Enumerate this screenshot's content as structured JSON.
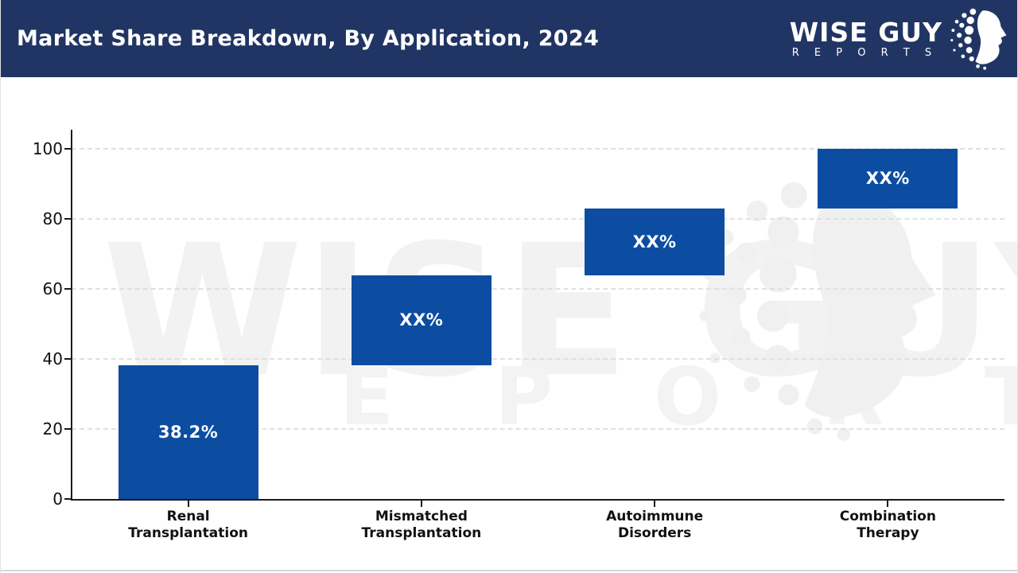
{
  "header": {
    "title": "Market Share Breakdown, By Application, 2024",
    "bg_color": "#213564",
    "logo": {
      "primary": "WISE GUY",
      "secondary": "R E P O R T S"
    }
  },
  "watermark": {
    "primary": "WISE GUY",
    "secondary": "R E P O R T S"
  },
  "chart_data": {
    "type": "bar",
    "variant": "waterfall",
    "title": "Market Share Breakdown, By Application, 2024",
    "categories": [
      [
        "Renal",
        "Transplantation"
      ],
      [
        "Mismatched",
        "Transplantation"
      ],
      [
        "Autoimmune",
        "Disorders"
      ],
      [
        "Combination",
        "Therapy"
      ]
    ],
    "segments": [
      {
        "category": "Renal Transplantation",
        "start": 0,
        "end": 38.2,
        "label": "38.2%"
      },
      {
        "category": "Mismatched Transplantation",
        "start": 38.2,
        "end": 63.9,
        "label": "XX%"
      },
      {
        "category": "Autoimmune Disorders",
        "start": 63.9,
        "end": 83.0,
        "label": "XX%"
      },
      {
        "category": "Combination Therapy",
        "start": 83.0,
        "end": 100.0,
        "label": "XX%"
      }
    ],
    "xlabel": "",
    "ylabel": "",
    "ylim": [
      0,
      100
    ],
    "yticks": [
      0,
      20,
      40,
      60,
      80,
      100
    ],
    "grid": "dashed-horizontal",
    "legend": "none",
    "bar_color": "#0c4da2",
    "bar_label_color": "#ffffff",
    "axis_color": "#1a1a1a"
  }
}
